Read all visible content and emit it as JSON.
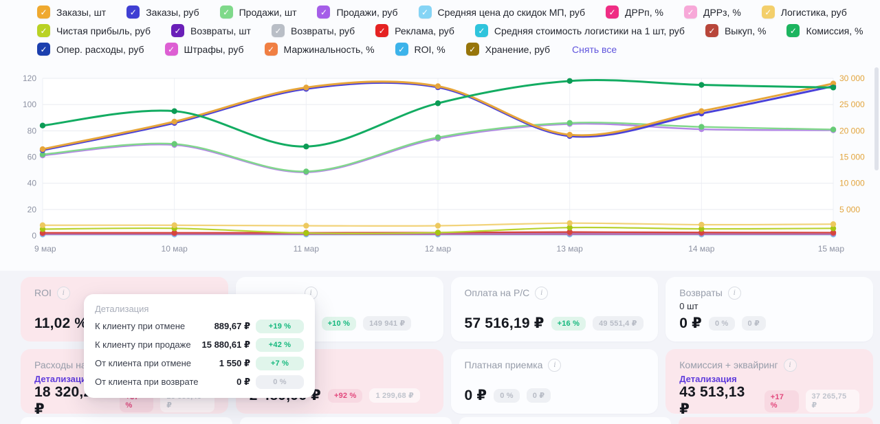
{
  "legend": {
    "rows": [
      [
        {
          "label": "Заказы, шт",
          "color": "#efa92f"
        },
        {
          "label": "Заказы, руб",
          "color": "#3f3fd3"
        },
        {
          "label": "Продажи, шт",
          "color": "#7fd98a"
        },
        {
          "label": "Продажи, руб",
          "color": "#a55ee8"
        },
        {
          "label": "Средняя цена до скидок МП, руб",
          "color": "#85d4f5"
        },
        {
          "label": "ДРРп, %",
          "color": "#ef2d84"
        },
        {
          "label": "ДРРз, %",
          "color": "#f7a8d8"
        },
        {
          "label": "Логистика, руб",
          "color": "#f3cf6b"
        }
      ],
      [
        {
          "label": "Чистая прибыль, руб",
          "color": "#b9d224"
        },
        {
          "label": "Возвраты, шт",
          "color": "#6a1fb8"
        },
        {
          "label": "Возвраты, руб",
          "color": "#b9bec6"
        },
        {
          "label": "Реклама, руб",
          "color": "#e52222"
        },
        {
          "label": "Средняя стоимость логистики на 1 шт, руб",
          "color": "#2fc4dc"
        },
        {
          "label": "Выкуп, %",
          "color": "#b8463a"
        },
        {
          "label": "Комиссия, %",
          "color": "#1cb45f"
        }
      ],
      [
        {
          "label": "Опер. расходы, руб",
          "color": "#1b3fae"
        },
        {
          "label": "Штрафы, руб",
          "color": "#dd5fd3"
        },
        {
          "label": "Маржинальность, %",
          "color": "#f07f43"
        },
        {
          "label": "ROI, %",
          "color": "#3cb3ea"
        },
        {
          "label": "Хранение, руб",
          "color": "#97750a"
        }
      ]
    ],
    "clear_all": "Снять все"
  },
  "chart_data": {
    "type": "line",
    "x": [
      "9 мар",
      "10 мар",
      "11 мар",
      "12 мар",
      "13 мар",
      "14 мар",
      "15 мар"
    ],
    "left_axis": {
      "min": 0,
      "max": 120,
      "ticks": [
        0,
        20,
        40,
        60,
        80,
        100,
        120
      ],
      "color": "#8d92a3"
    },
    "right_axis": {
      "min": 0,
      "max": 30000,
      "ticks": [
        0,
        5000,
        10000,
        15000,
        20000,
        25000,
        30000
      ],
      "color": "#e2a43c"
    },
    "grid": true,
    "legend_position": "top",
    "series": [
      {
        "name": "Средняя цена до скидок МП, руб",
        "axis": "right",
        "color": "#8fd4f3",
        "point_color": "#7ecdf2",
        "width": 2,
        "values": [
          220,
          220,
          220,
          220,
          220,
          220,
          220
        ]
      },
      {
        "name": "Штрафы, руб",
        "axis": "right",
        "color": "#b46fb0",
        "point_color": "#b46fb0",
        "width": 4,
        "values": [
          400,
          400,
          400,
          400,
          400,
          400,
          400
        ]
      },
      {
        "name": "Реклама, руб",
        "axis": "right",
        "color": "#d6453c",
        "point_color": "#d6453c",
        "width": 2.2,
        "values": [
          560,
          560,
          560,
          600,
          700,
          620,
          600
        ]
      },
      {
        "name": "Чистая прибыль, руб",
        "axis": "right",
        "color": "#b9d230",
        "point_color": "#a6c613",
        "width": 2.2,
        "values": [
          1250,
          1400,
          500,
          600,
          1550,
          1300,
          1400
        ]
      },
      {
        "name": "Логистика, руб",
        "axis": "right",
        "color": "#f2d37a",
        "point_color": "#edc95f",
        "width": 2.2,
        "values": [
          2000,
          2000,
          1900,
          1900,
          2400,
          2100,
          2200
        ]
      },
      {
        "name": "Продажи, руб",
        "axis": "right",
        "color": "#b387e6",
        "point_color": "#b387e6",
        "width": 2.4,
        "values": [
          15300,
          17300,
          12100,
          18500,
          21300,
          20300,
          20100
        ]
      },
      {
        "name": "Продажи, шт",
        "axis": "left",
        "color": "#82d88c",
        "point_color": "#67cb76",
        "width": 2.4,
        "values": [
          62,
          70,
          49,
          75,
          86,
          83,
          81
        ]
      },
      {
        "name": "Заказы, руб",
        "axis": "right",
        "color": "#4a41d8",
        "point_color": "#4a41d8",
        "width": 3,
        "values": [
          16300,
          21500,
          28000,
          28300,
          19000,
          23300,
          28500
        ]
      },
      {
        "name": "Заказы, шт",
        "axis": "left",
        "color": "#e6a53a",
        "point_color": "#e6a53a",
        "width": 3,
        "values": [
          66,
          87,
          113,
          114,
          77,
          95,
          116
        ]
      },
      {
        "name": "Комиссия, %",
        "axis": "left",
        "color": "#13ac62",
        "point_color": "#0c9b55",
        "width": 3,
        "values": [
          84,
          95,
          68,
          101,
          118,
          115,
          113
        ]
      }
    ]
  },
  "cards": {
    "row1": [
      {
        "key": "roi",
        "title": "ROI",
        "info": true,
        "bg": "pink",
        "value": "11,02 %",
        "partial_badge": true,
        "badges": []
      },
      {
        "key": "covered-card-1",
        "title": "",
        "title_spacer": 64,
        "info": true,
        "bg": "white",
        "value": "₽",
        "value_spacer": 70,
        "badges": [
          {
            "text": "+10 %",
            "type": "green"
          },
          {
            "text": "149 941 ₽",
            "type": "gray"
          }
        ]
      },
      {
        "key": "payout",
        "title": "Оплата на Р/С",
        "info": true,
        "bg": "white",
        "value": "57 516,19 ₽",
        "badges": [
          {
            "text": "+16 %",
            "type": "green"
          },
          {
            "text": "49 551,4 ₽",
            "type": "gray"
          }
        ]
      },
      {
        "key": "returns",
        "title": "Возвраты",
        "info": true,
        "bg": "white",
        "sub": "0 шт",
        "value": "0 ₽",
        "badges": [
          {
            "text": "0 %",
            "type": "gray"
          },
          {
            "text": "0 ₽",
            "type": "gray"
          }
        ]
      }
    ],
    "row2": [
      {
        "key": "expenses",
        "title": "Расходы на",
        "info": false,
        "bg": "pink",
        "detail": "Детализация",
        "value": "18 320,28 ₽",
        "badges": [
          {
            "text": "+37 %",
            "type": "red"
          },
          {
            "text": "13 356,43 ₽",
            "type": "graylight"
          }
        ]
      },
      {
        "key": "covered-card-2",
        "title": "",
        "title_spacer": 60,
        "info": true,
        "bg": "pink",
        "value": "2 489,96 ₽",
        "badges": [
          {
            "text": "+92 %",
            "type": "red"
          },
          {
            "text": "1 299,68 ₽",
            "type": "graylight"
          }
        ]
      },
      {
        "key": "paid-acceptance",
        "title": "Платная приемка",
        "info": true,
        "bg": "white",
        "value": "0 ₽",
        "badges": [
          {
            "text": "0 %",
            "type": "gray"
          },
          {
            "text": "0 ₽",
            "type": "gray"
          }
        ]
      },
      {
        "key": "commission",
        "title": "Комиссия + эквайринг",
        "info": true,
        "bg": "pink",
        "detail": "Детализация",
        "value": "43 513,13 ₽",
        "badges": [
          {
            "text": "+17 %",
            "type": "red"
          },
          {
            "text": "37 265,75 ₽",
            "type": "graylight"
          }
        ]
      }
    ]
  },
  "tooltip": {
    "header": "Детализация",
    "rows": [
      {
        "label": "К клиенту при отмене",
        "value": "889,67 ₽",
        "badge": "+19 %",
        "badge_type": "green"
      },
      {
        "label": "К клиенту при продаже",
        "value": "15 880,61 ₽",
        "badge": "+42 %",
        "badge_type": "green"
      },
      {
        "label": "От клиента при отмене",
        "value": "1 550 ₽",
        "badge": "+7 %",
        "badge_type": "green"
      },
      {
        "label": "От клиента при возврате",
        "value": "0 ₽",
        "badge": "0 %",
        "badge_type": "gray"
      }
    ]
  },
  "colors": {
    "page_bg": "#f3f4f9",
    "top_bg": "#fbfcfe",
    "plot_bg": "#ffffff",
    "grid_line": "#e9ebf1",
    "pink_card_bg": "#fbe7ec",
    "accent_link": "#5f3bdc",
    "badge_green": "#14b87d",
    "badge_red": "#e2477c"
  }
}
